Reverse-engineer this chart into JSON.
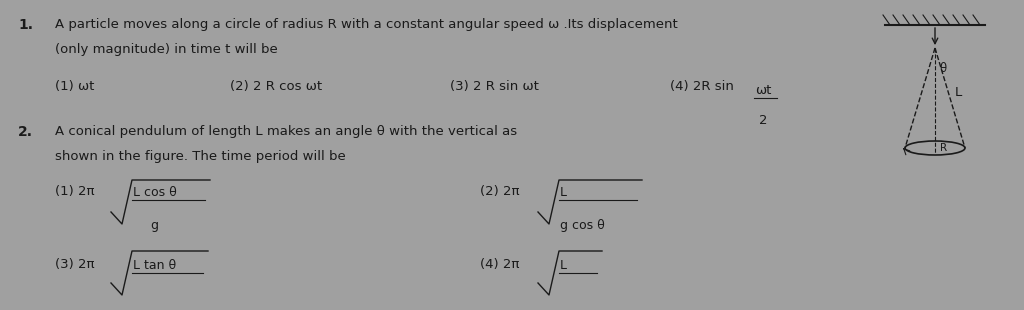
{
  "bg_color": "#a0a0a0",
  "text_color": "#1a1a1a",
  "fig_width": 10.24,
  "fig_height": 3.1,
  "q1_number": "1.",
  "q1_text": "A particle moves along a circle of radius R with a constant angular speed ω .Its displacement\n(only magnitude) in time t will be",
  "q1_options": [
    "(1) ωt",
    "(2) 2 R cos ωt",
    "(3) 2 R sin ωt"
  ],
  "q1_opt4_prefix": "(4) 2R sin",
  "q1_opt4_frac_num": "ωt",
  "q1_opt4_frac_den": "2",
  "q2_number": "2.",
  "q2_text": "A conical pendulum of length L makes an angle θ with the vertical as\nshown in the figure. The time period will be",
  "q2_opt1_prefix": "(1) 2π",
  "q2_opt1_num": "L cos θ",
  "q2_opt1_den": "g",
  "q2_opt2_prefix": "(2) 2π",
  "q2_opt2_num": "L",
  "q2_opt2_den": "g cos θ",
  "q3_opt3_prefix": "(3) 2π",
  "q3_opt3_num": "L tan θ",
  "q3_opt4_prefix": "(4) 2π",
  "q3_opt4_num": "L"
}
